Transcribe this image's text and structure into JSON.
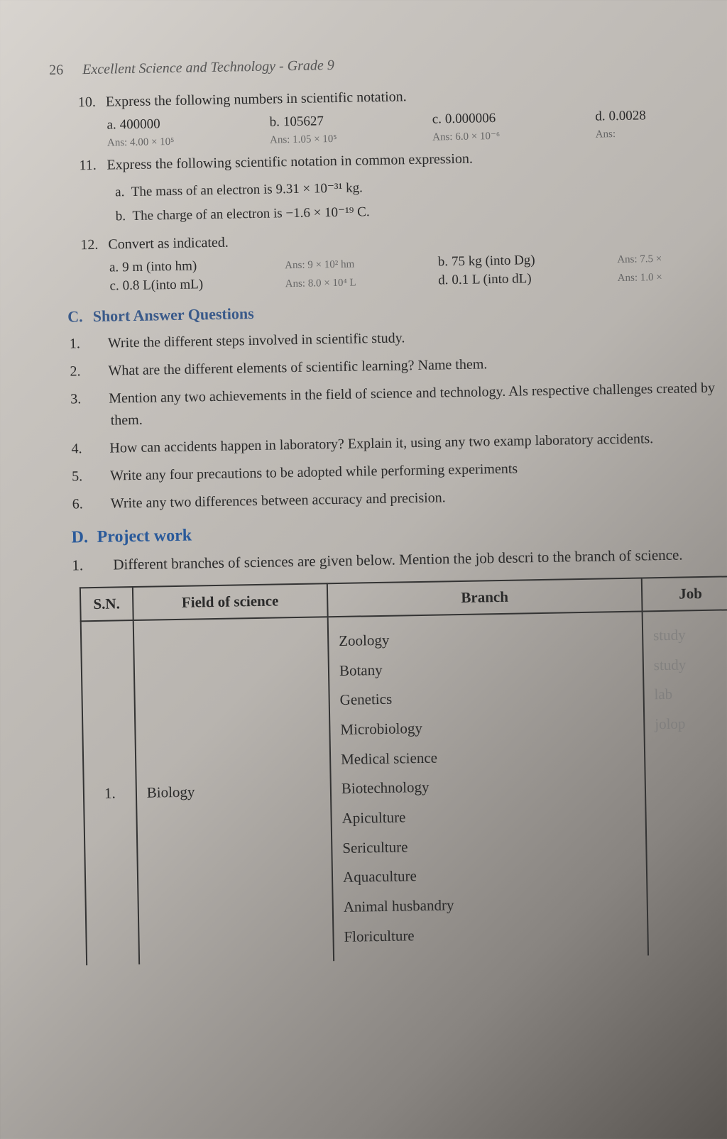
{
  "header": {
    "page_num": "26",
    "book_title": "Excellent Science and Technology - Grade 9"
  },
  "q10": {
    "num": "10.",
    "text": "Express the following numbers in scientific notation.",
    "a_lab": "a.",
    "a_val": "400000",
    "a_ans": "Ans: 4.00 × 10⁵",
    "b_lab": "b.",
    "b_val": "105627",
    "b_ans": "Ans: 1.05 × 10⁵",
    "c_lab": "c.",
    "c_val": "0.000006",
    "c_ans": "Ans: 6.0 × 10⁻⁶",
    "d_lab": "d.",
    "d_val": "0.0028",
    "d_ans": "Ans:"
  },
  "q11": {
    "num": "11.",
    "text": "Express the following scientific notation in common expression.",
    "a_lab": "a.",
    "a_text": "The mass of an electron is 9.31 × 10⁻³¹ kg.",
    "b_lab": "b.",
    "b_text": "The charge of an electron is −1.6 × 10⁻¹⁹ C."
  },
  "q12": {
    "num": "12.",
    "text": "Convert as indicated.",
    "a_lab": "a.",
    "a_val": "9 m (into hm)",
    "a_ans": "Ans: 9 × 10² hm",
    "b_lab": "b.",
    "b_val": "75 kg (into Dg)",
    "b_ans": "Ans: 7.5 ×",
    "c_lab": "c.",
    "c_val": "0.8 L(into mL)",
    "c_ans": "Ans: 8.0 × 10⁴ L",
    "d_lab": "d.",
    "d_val": "0.1 L (into dL)",
    "d_ans": "Ans: 1.0 ×"
  },
  "secC": {
    "letter": "C.",
    "title": "Short Answer Questions"
  },
  "saq": {
    "i1n": "1.",
    "i1": "Write the different steps involved in scientific study.",
    "i2n": "2.",
    "i2": "What are the different elements of scientific learning? Name them.",
    "i3n": "3.",
    "i3": "Mention any two achievements in the field of science and technology. Als respective challenges created by them.",
    "i4n": "4.",
    "i4": "How can accidents happen in laboratory? Explain it, using any two examp laboratory accidents.",
    "i5n": "5.",
    "i5": "Write any four precautions to be adopted while performing experiments",
    "i6n": "6.",
    "i6": "Write any two differences between accuracy and precision."
  },
  "secD": {
    "letter": "D.",
    "title": "Project work"
  },
  "proj": {
    "i1n": "1.",
    "i1": "Different branches of sciences are given below. Mention the job descri to the branch of science."
  },
  "table": {
    "h_sn": "S.N.",
    "h_field": "Field of science",
    "h_branch": "Branch",
    "h_job": "Job",
    "r1_sn": "1.",
    "r1_field": "Biology",
    "b1": "Zoology",
    "b2": "Botany",
    "b3": "Genetics",
    "b4": "Microbiology",
    "b5": "Medical science",
    "b6": "Biotechnology",
    "b7": "Apiculture",
    "b8": "Sericulture",
    "b9": "Aquaculture",
    "b10": "Animal husbandry",
    "b11": "Floriculture",
    "j1": "study",
    "j2": "study",
    "j3": "lab",
    "j4": "jolop"
  }
}
